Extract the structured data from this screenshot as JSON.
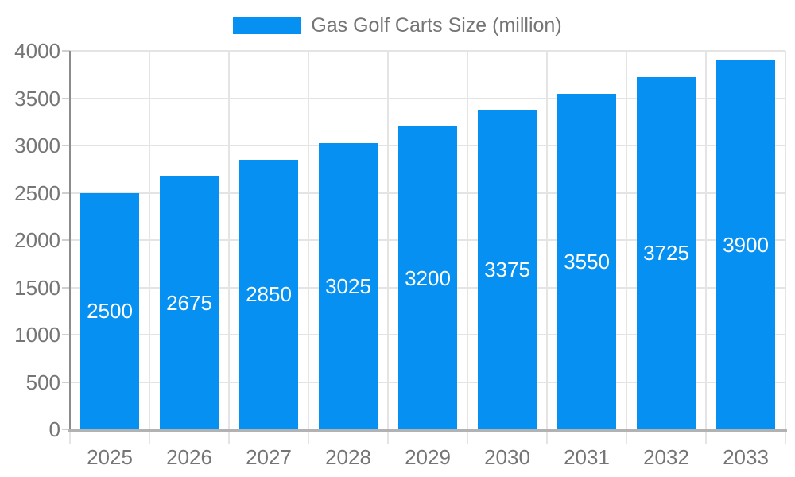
{
  "chart_data": {
    "type": "bar",
    "title": "",
    "legend_label": "Gas Golf Carts Size (million)",
    "legend_position": "top-center",
    "categories": [
      "2025",
      "2026",
      "2027",
      "2028",
      "2029",
      "2030",
      "2031",
      "2032",
      "2033"
    ],
    "values": [
      2500,
      2675,
      2850,
      3025,
      3200,
      3375,
      3550,
      3725,
      3900
    ],
    "xlabel": "",
    "ylabel": "",
    "ylim": [
      0,
      4000
    ],
    "yticks": [
      0,
      500,
      1000,
      1500,
      2000,
      2500,
      3000,
      3500,
      4000
    ],
    "grid": true,
    "legend_entries": [
      "Gas Golf Carts Size (million)"
    ],
    "colors": {
      "bar": "#0590f2",
      "grid": "#e4e4e4",
      "axis_y": "#8c8c8c",
      "axis_x": "#b2b2b2",
      "tick": "#cfcfcf",
      "axis_text": "#757575",
      "bar_label_text": "#ffffff",
      "background": "#ffffff"
    }
  }
}
